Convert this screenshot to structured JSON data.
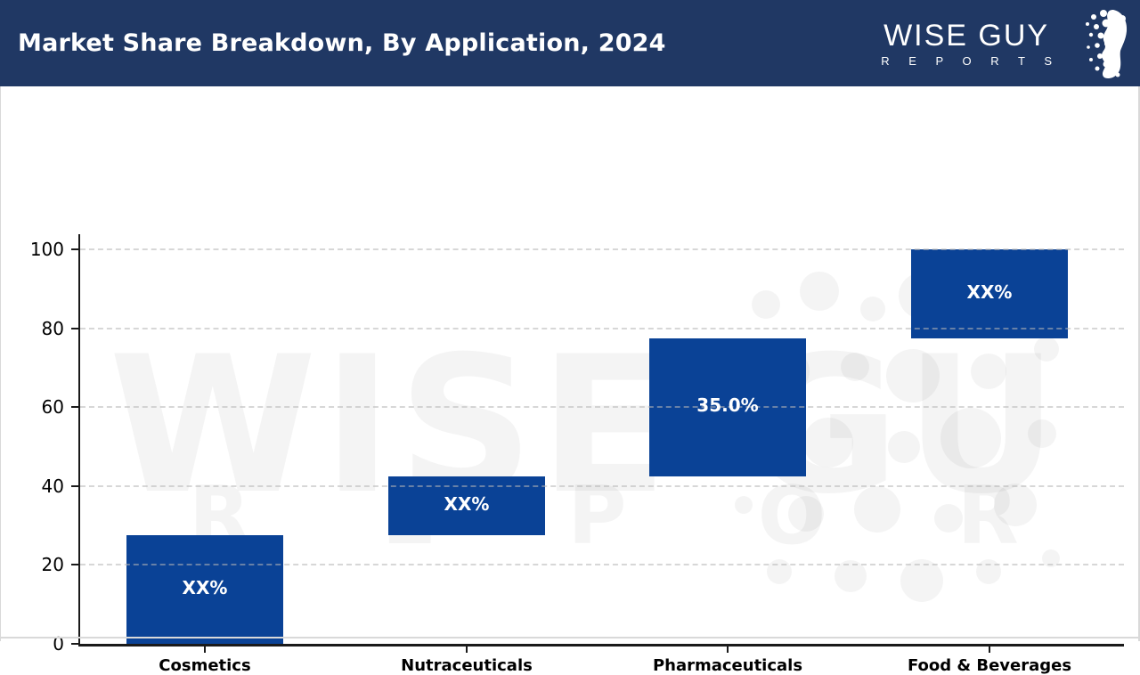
{
  "header": {
    "title": "Market Share Breakdown, By Application, 2024",
    "logo": {
      "line1": "WISE GUY",
      "line2": "R E P O R T S"
    },
    "bg_color": "#203864"
  },
  "watermark": {
    "line1": "WISE GU",
    "line2": "R E P O R T S"
  },
  "chart_data": {
    "type": "bar",
    "variant": "waterfall",
    "title": "Market Share Breakdown, By Application, 2024",
    "categories": [
      "Cosmetics",
      "Nutraceuticals",
      "Pharmaceuticals",
      "Food & Beverages"
    ],
    "series": [
      {
        "name": "Market share (%)",
        "segments": [
          {
            "category": "Cosmetics",
            "start": 0,
            "end": 27.5,
            "label": "XX%"
          },
          {
            "category": "Nutraceuticals",
            "start": 27.5,
            "end": 42.5,
            "label": "XX%"
          },
          {
            "category": "Pharmaceuticals",
            "start": 42.5,
            "end": 77.5,
            "label": "35.0%"
          },
          {
            "category": "Food & Beverages",
            "start": 77.5,
            "end": 100,
            "label": "XX%"
          }
        ]
      }
    ],
    "yticks": [
      0,
      20,
      40,
      60,
      80,
      100
    ],
    "ylim": [
      0,
      103
    ],
    "grid": "dashed-horizontal",
    "legend": "none",
    "bar_color": "#0a4296",
    "bar_label_color": "#ffffff",
    "axis_color": "#1a1a1a"
  }
}
